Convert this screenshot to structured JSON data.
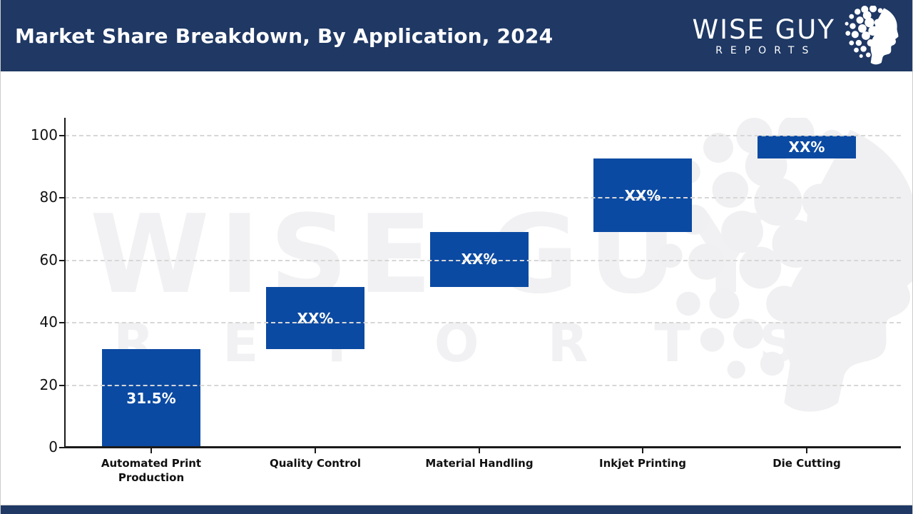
{
  "header": {
    "title": "Market Share Breakdown, By Application, 2024",
    "logo_line1": "WISE GUY",
    "logo_line2": "REPORTS"
  },
  "icons": {
    "logo_face": "dot-face-profile-icon"
  },
  "watermark": {
    "line1": "WISE GUY",
    "line2": "REPORTS"
  },
  "colors": {
    "header_bg": "#1F3864",
    "footer_bg": "#1F3864",
    "bar": "#0B4AA2",
    "grid": "#D7D7D7",
    "axis": "#1A1A1A",
    "bar_label": "#FFFFFF",
    "watermark": "#F1F1F3"
  },
  "chart_data": {
    "type": "bar",
    "subtype": "waterfall-floating-bars",
    "title": "Market Share Breakdown, By Application, 2024",
    "xlabel": "",
    "ylabel": "",
    "ylim": [
      0,
      106
    ],
    "y_ticks": [
      0,
      20,
      40,
      60,
      80,
      100
    ],
    "grid": "horizontal-dashed",
    "legend": "none",
    "categories": [
      "Automated Print Production",
      "Quality Control",
      "Material Handling",
      "Inkjet Printing",
      "Die Cutting"
    ],
    "segments": [
      {
        "category": "Automated Print Production",
        "start": 0,
        "end": 31.5,
        "value": 31.5,
        "label": "31.5%"
      },
      {
        "category": "Quality Control",
        "start": 31.5,
        "end": 51.4,
        "value": 19.9,
        "label": "XX%"
      },
      {
        "category": "Material Handling",
        "start": 51.4,
        "end": 69.1,
        "value": 17.7,
        "label": "XX%"
      },
      {
        "category": "Inkjet Printing",
        "start": 69.1,
        "end": 92.5,
        "value": 23.4,
        "label": "XX%"
      },
      {
        "category": "Die Cutting",
        "start": 92.5,
        "end": 100,
        "value": 7.5,
        "label": "XX%"
      }
    ]
  }
}
